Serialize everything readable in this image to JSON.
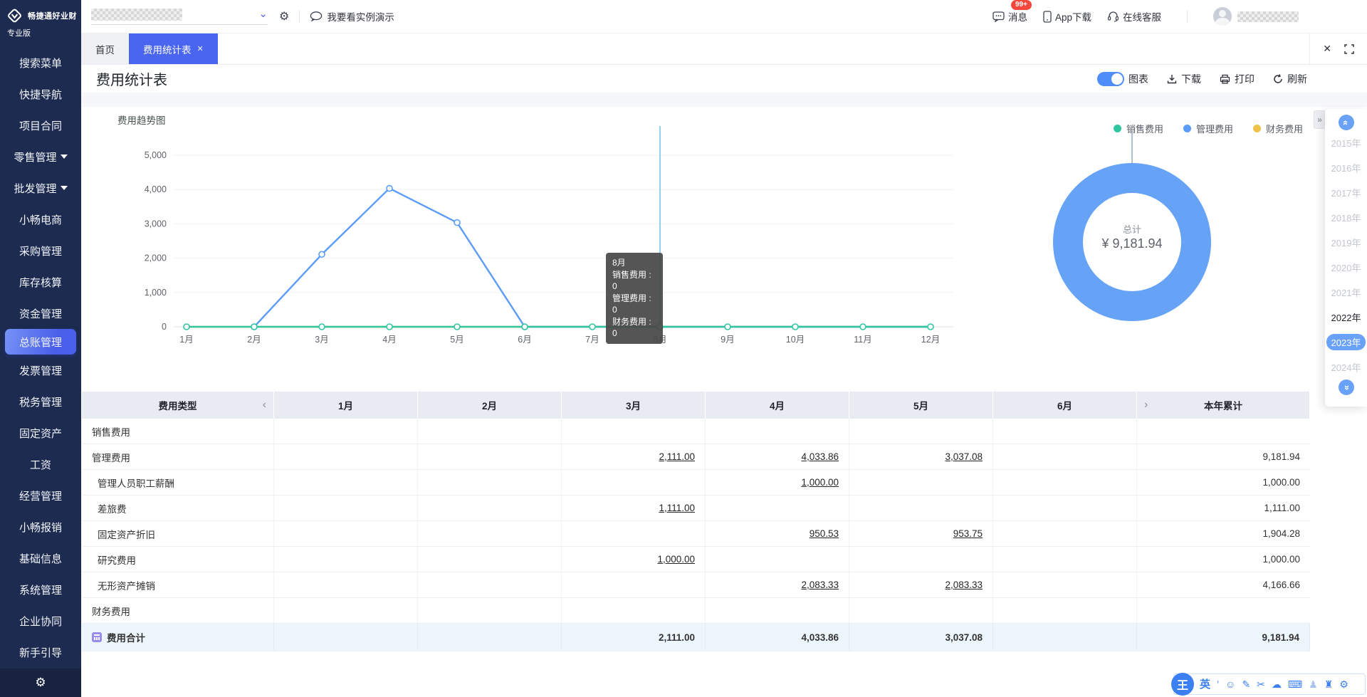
{
  "brand": {
    "name": "畅捷通好业财",
    "edition": "专业版"
  },
  "icons": {
    "gear": "⚙",
    "close": "✕",
    "chevron-down": "⌄",
    "prev": "‹",
    "next": "›",
    "collapse": "»",
    "double-chevron": "«"
  },
  "topbar": {
    "demo": "我要看实例演示",
    "messages": "消息",
    "messages_badge": "99+",
    "app_download": "App下载",
    "online_service": "在线客服"
  },
  "sidebar": {
    "items": [
      {
        "label": "搜索菜单"
      },
      {
        "label": "快捷导航"
      },
      {
        "label": "项目合同"
      },
      {
        "label": "零售管理",
        "expandable": true
      },
      {
        "label": "批发管理",
        "expandable": true
      },
      {
        "label": "小畅电商"
      },
      {
        "label": "采购管理"
      },
      {
        "label": "库存核算"
      },
      {
        "label": "资金管理"
      },
      {
        "label": "总账管理",
        "active": true
      },
      {
        "label": "发票管理"
      },
      {
        "label": "税务管理"
      },
      {
        "label": "固定资产"
      },
      {
        "label": "工资"
      },
      {
        "label": "经营管理"
      },
      {
        "label": "小畅报销"
      },
      {
        "label": "基础信息"
      },
      {
        "label": "系统管理"
      },
      {
        "label": "企业协同"
      },
      {
        "label": "新手引导"
      }
    ]
  },
  "tabs": {
    "home": "首页",
    "active": "费用统计表"
  },
  "page": {
    "title": "费用统计表"
  },
  "toolbar": {
    "chart_toggle": "图表",
    "download": "下载",
    "print": "打印",
    "refresh": "刷新"
  },
  "chart_data": {
    "type": "line",
    "title": "费用趋势图",
    "categories": [
      "1月",
      "2月",
      "3月",
      "4月",
      "5月",
      "6月",
      "7月",
      "8月",
      "9月",
      "10月",
      "11月",
      "12月"
    ],
    "series": [
      {
        "name": "销售费用",
        "color": "#2fc6a0",
        "values": [
          0,
          0,
          0,
          0,
          0,
          0,
          0,
          0,
          0,
          0,
          0,
          0
        ]
      },
      {
        "name": "管理费用",
        "color": "#5b9cf8",
        "values": [
          null,
          0,
          2111.0,
          4033.86,
          3037.08,
          0,
          0,
          0,
          0,
          0,
          0,
          0
        ]
      },
      {
        "name": "财务费用",
        "color": "#efc24a",
        "values": [
          0,
          0,
          0,
          0,
          0,
          0,
          0,
          0,
          0,
          0,
          0,
          0
        ]
      }
    ],
    "ylim": [
      0,
      5000
    ],
    "yticks": [
      "0",
      "1,000",
      "2,000",
      "3,000",
      "4,000",
      "5,000"
    ],
    "grid": true,
    "legend_position": "top-right",
    "hover_index": 7
  },
  "tooltip": {
    "title": "8月",
    "rows": [
      {
        "label": "销售费用",
        "value": "0"
      },
      {
        "label": "管理费用",
        "value": "0"
      },
      {
        "label": "财务费用",
        "value": "0"
      }
    ]
  },
  "donut": {
    "label": "总计",
    "value": "¥ 9,181.94",
    "color": "#66a3f7",
    "share_of_total": 1
  },
  "year_panel": {
    "years": [
      "2015年",
      "2016年",
      "2017年",
      "2018年",
      "2019年",
      "2020年",
      "2021年",
      "2022年",
      "2023年",
      "2024年"
    ],
    "selected": "2023年",
    "current": "2022年"
  },
  "table": {
    "columns": [
      "费用类型",
      "1月",
      "2月",
      "3月",
      "4月",
      "5月",
      "6月",
      "本年累计"
    ],
    "rows": [
      {
        "label": "销售费用",
        "indent": 0,
        "months": [
          "",
          "",
          "",
          "",
          "",
          ""
        ],
        "links": [],
        "total": ""
      },
      {
        "label": "管理费用",
        "indent": 0,
        "months": [
          "",
          "",
          "2,111.00",
          "4,033.86",
          "3,037.08",
          ""
        ],
        "links": [
          2,
          3,
          4
        ],
        "total": "9,181.94"
      },
      {
        "label": "管理人员职工薪酬",
        "indent": 1,
        "months": [
          "",
          "",
          "",
          "1,000.00",
          "",
          ""
        ],
        "links": [
          3
        ],
        "total": "1,000.00"
      },
      {
        "label": "差旅费",
        "indent": 1,
        "months": [
          "",
          "",
          "1,111.00",
          "",
          "",
          ""
        ],
        "links": [
          2
        ],
        "total": "1,111.00"
      },
      {
        "label": "固定资产折旧",
        "indent": 1,
        "months": [
          "",
          "",
          "",
          "950.53",
          "953.75",
          ""
        ],
        "links": [
          3,
          4
        ],
        "total": "1,904.28"
      },
      {
        "label": "研究费用",
        "indent": 1,
        "months": [
          "",
          "",
          "1,000.00",
          "",
          "",
          ""
        ],
        "links": [
          2
        ],
        "total": "1,000.00"
      },
      {
        "label": "无形资产摊销",
        "indent": 1,
        "months": [
          "",
          "",
          "",
          "2,083.33",
          "2,083.33",
          ""
        ],
        "links": [
          3,
          4
        ],
        "total": "4,166.66"
      },
      {
        "label": "财务费用",
        "indent": 0,
        "months": [
          "",
          "",
          "",
          "",
          "",
          ""
        ],
        "links": [],
        "total": ""
      },
      {
        "label": "费用合计",
        "indent": 0,
        "months": [
          "",
          "",
          "2,111.00",
          "4,033.86",
          "3,037.08",
          ""
        ],
        "links": [],
        "total": "9,181.94",
        "summary": true
      }
    ]
  },
  "ime": {
    "logo": "王",
    "icons": [
      {
        "name": "english-mode",
        "glyph": "英"
      },
      {
        "name": "punctuation-icon",
        "glyph": "’"
      },
      {
        "name": "emoji-icon",
        "glyph": "☺"
      },
      {
        "name": "handwriting-icon",
        "glyph": "✎"
      },
      {
        "name": "clipboard-icon",
        "glyph": "✂"
      },
      {
        "name": "cloud-icon",
        "glyph": "☁"
      },
      {
        "name": "keyboard-icon",
        "glyph": "⌨"
      },
      {
        "name": "profile-icon",
        "glyph": "♟"
      },
      {
        "name": "skin-icon",
        "glyph": "♜"
      },
      {
        "name": "ime-settings-icon",
        "glyph": "⚙"
      }
    ]
  }
}
